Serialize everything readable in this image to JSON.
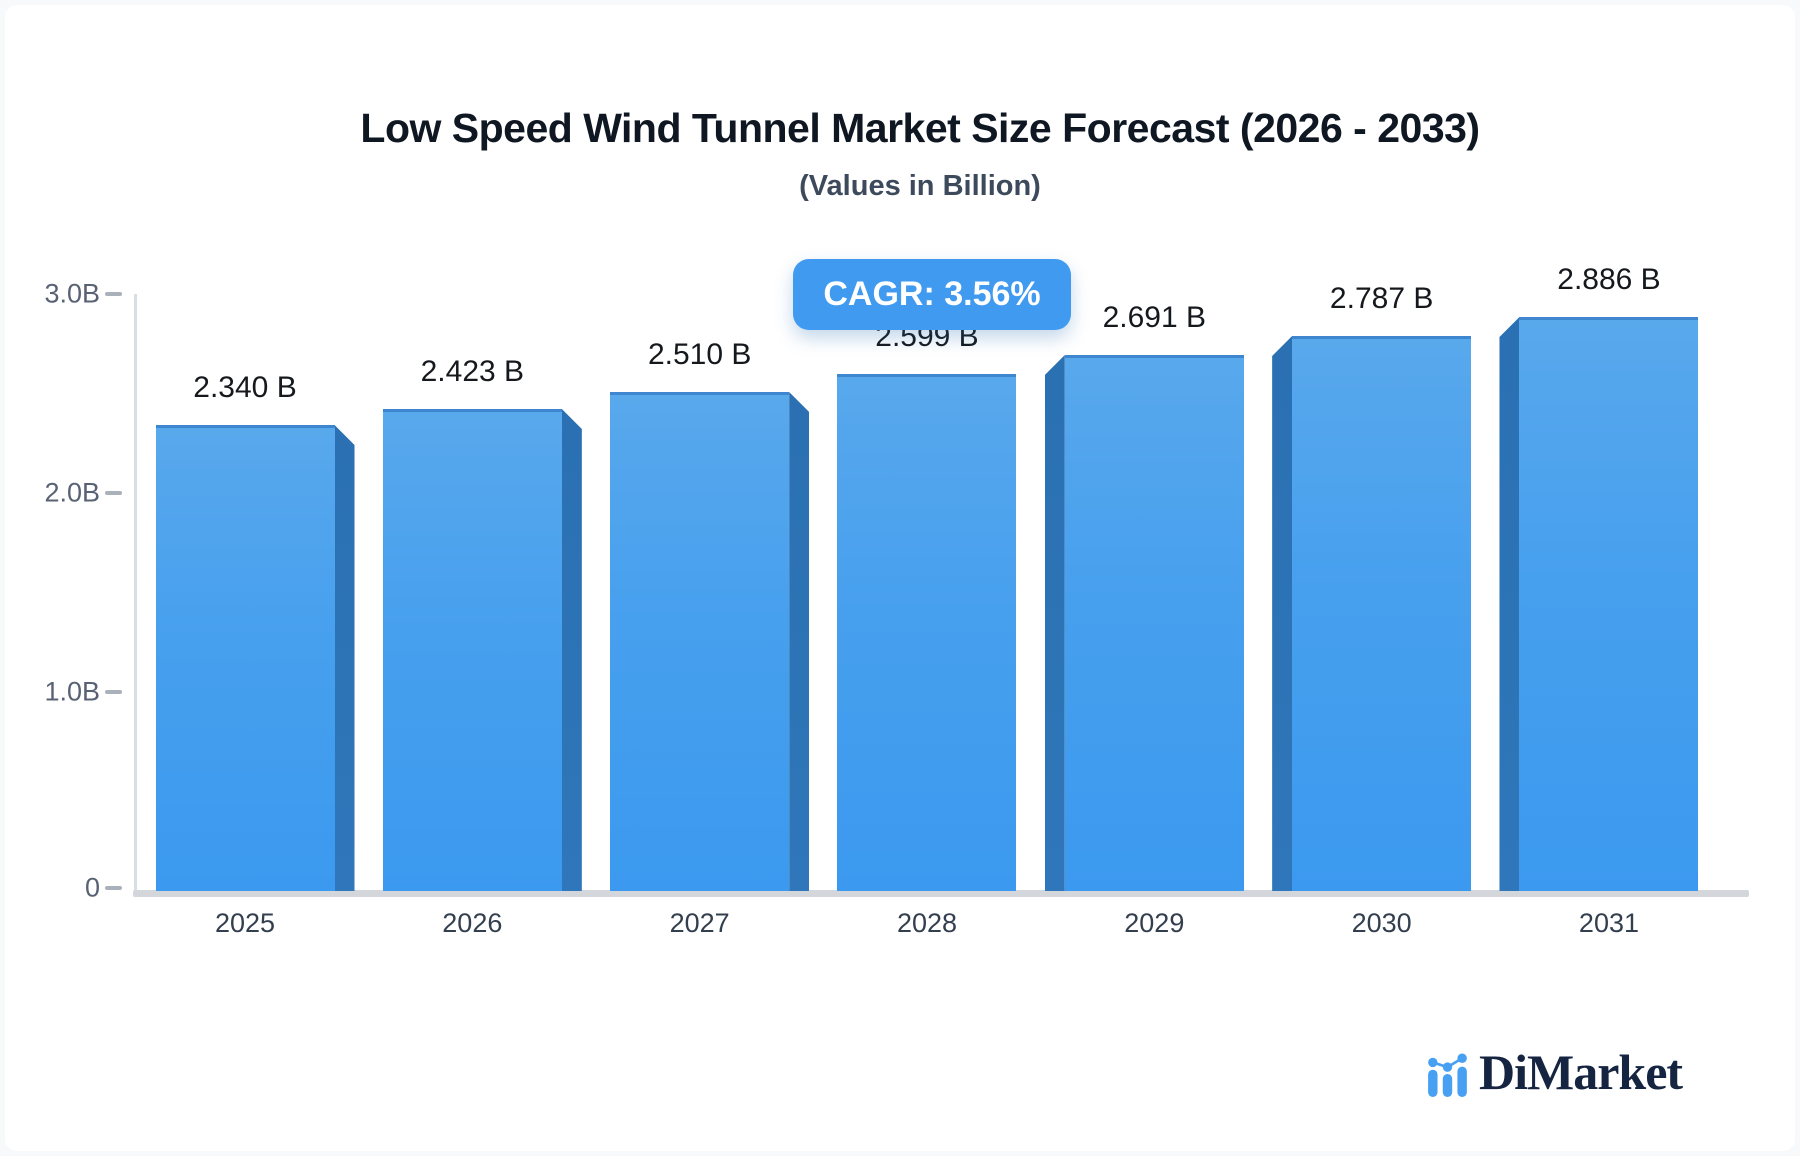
{
  "header": {
    "title": "Low Speed Wind Tunnel Market Size Forecast (2026 - 2033)",
    "subtitle": "(Values in Billion)"
  },
  "cagr_badge": {
    "label": "CAGR: 3.56%",
    "color": "#3f9af0"
  },
  "chart_data": {
    "type": "bar",
    "title": "Low Speed Wind Tunnel Market Size Forecast (2026 - 2033)",
    "subtitle": "(Values in Billion)",
    "annotation": "CAGR: 3.56%",
    "categories": [
      "2025",
      "2026",
      "2027",
      "2028",
      "2029",
      "2030",
      "2031"
    ],
    "values": [
      2.34,
      2.423,
      2.51,
      2.599,
      2.691,
      2.787,
      2.886
    ],
    "value_labels": [
      "2.340 B",
      "2.423 B",
      "2.510 B",
      "2.599 B",
      "2.691 B",
      "2.787 B",
      "2.886 B"
    ],
    "xlabel": "",
    "ylabel": "",
    "ylim": [
      0,
      3
    ],
    "yticks": [
      {
        "value": 3,
        "label": "3.0B"
      },
      {
        "value": 2,
        "label": "2.0B"
      },
      {
        "value": 1,
        "label": "1.0B"
      },
      {
        "value": 0,
        "label": "0"
      }
    ],
    "grid": false,
    "legend_position": "none",
    "bar_colors": {
      "face_top": "#58a8ec",
      "face_bottom": "#3b99ef",
      "side": "#2c73b5"
    }
  },
  "logo": {
    "text": "DiMarket",
    "icon": "mini-bar-chart-trend-icon",
    "icon_color": "#47a0f1",
    "text_color": "#152440"
  }
}
